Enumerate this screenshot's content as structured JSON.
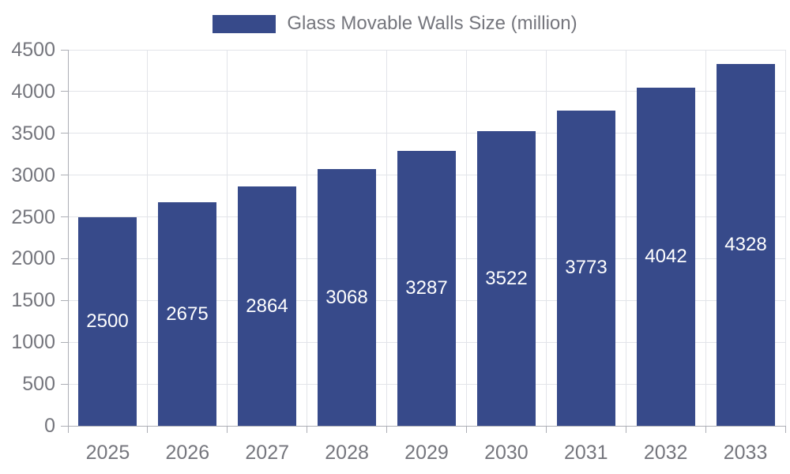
{
  "chart_data": {
    "type": "bar",
    "title": "Glass Movable Walls Size (million)",
    "series": [
      {
        "name": "Glass Movable Walls Size (million)",
        "values": [
          2500,
          2675,
          2864,
          3068,
          3287,
          3522,
          3773,
          4042,
          4328
        ]
      }
    ],
    "categories": [
      "2025",
      "2026",
      "2027",
      "2028",
      "2029",
      "2030",
      "2031",
      "2032",
      "2033"
    ],
    "xlabel": "",
    "ylabel": "",
    "ylim": [
      0,
      4500
    ],
    "ytick_step": 500,
    "grid": true,
    "legend_position": "top-center",
    "value_label_position": "inside-center",
    "colors": {
      "bar": "#374a8a",
      "bar_value_label": "#ffffff",
      "grid_line": "#e2e4e9",
      "axis_line": "#acaeb5",
      "tick_text": "#75767d",
      "background": "#ffffff"
    }
  }
}
